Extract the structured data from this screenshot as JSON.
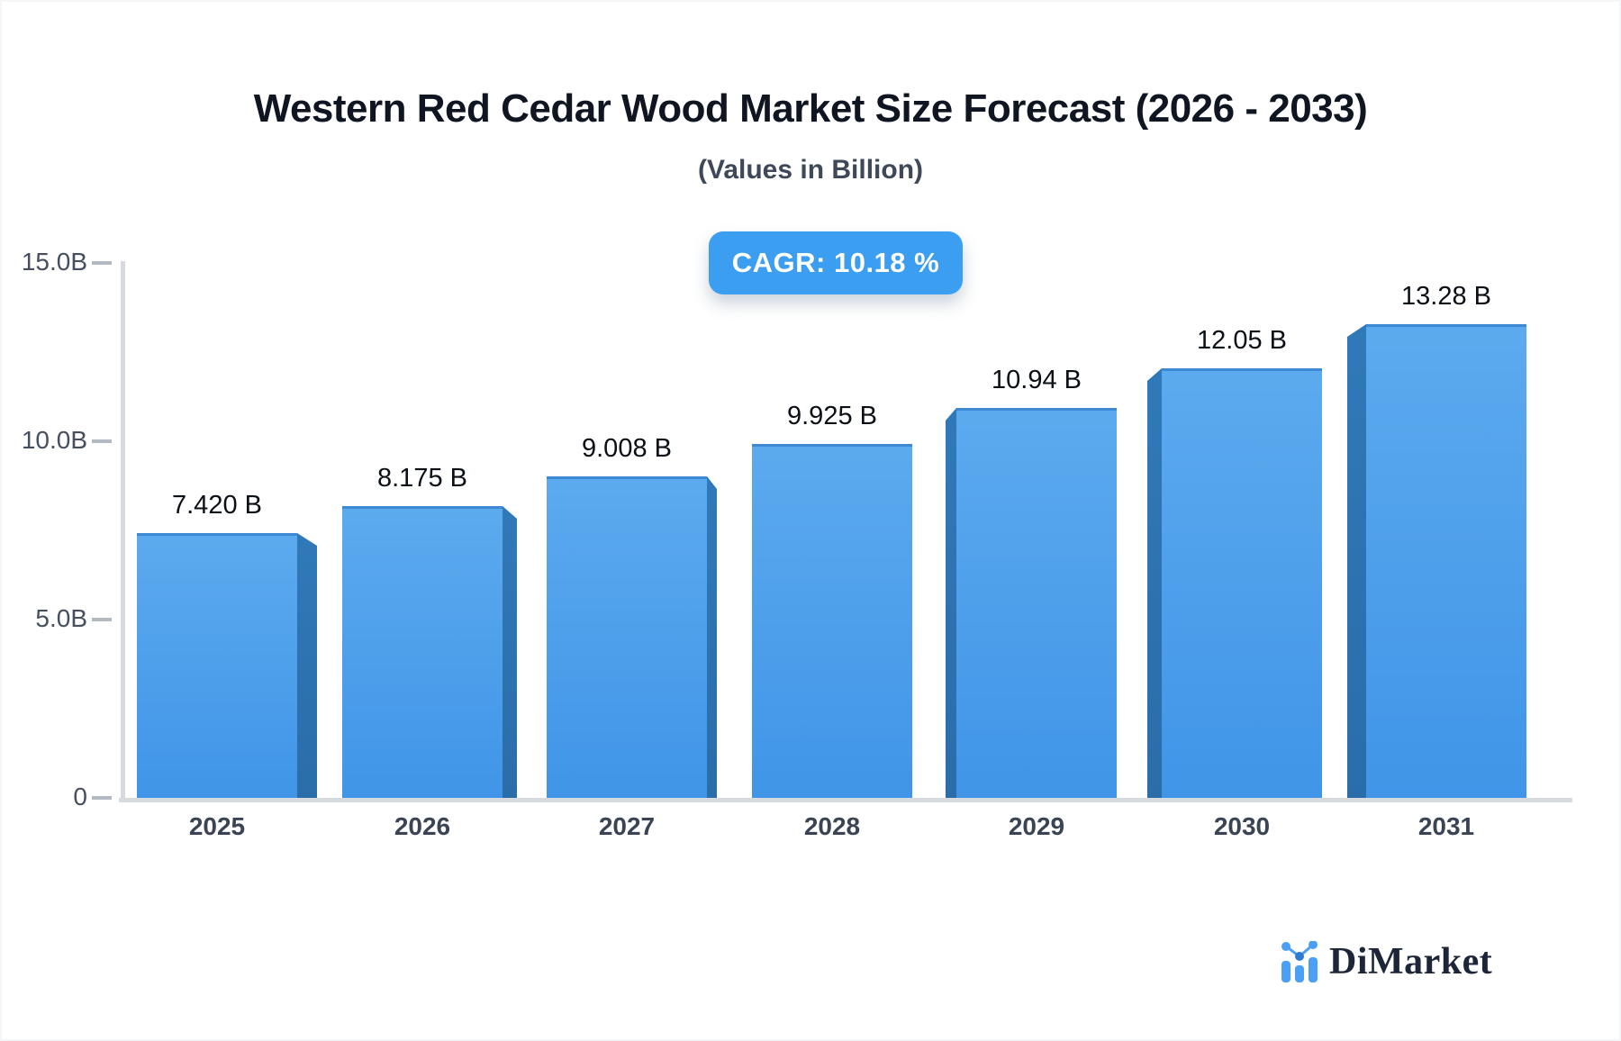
{
  "chart": {
    "title": "Western Red Cedar Wood Market Size Forecast (2026 - 2033)",
    "subtitle": "(Values in Billion)",
    "cagr_label": "CAGR: 10.18 %"
  },
  "brand": {
    "name": "DiMarket"
  },
  "colors": {
    "accent_blue": "#3c9ef1",
    "bar_face_top": "#5caaee",
    "bar_face_bottom": "#4095e8",
    "bar_side": "#2e75b5",
    "axis_line": "#d7dade",
    "axis_text": "#454f5f",
    "title_text": "#101522",
    "logo_navy": "#1d2639",
    "logo_blue": "#4aa0f4"
  },
  "chart_data": {
    "type": "bar",
    "title": "Western Red Cedar Wood Market Size Forecast (2026 - 2033)",
    "subtitle": "(Values in Billion)",
    "annotation": "CAGR: 10.18 %",
    "unit": "Billion",
    "categories": [
      "2025",
      "2026",
      "2027",
      "2028",
      "2029",
      "2030",
      "2031"
    ],
    "values": [
      7.42,
      8.175,
      9.008,
      9.925,
      10.94,
      12.05,
      13.28
    ],
    "value_labels": [
      "7.420 B",
      "8.175 B",
      "9.008 B",
      "9.925 B",
      "10.94 B",
      "12.05 B",
      "13.28 B"
    ],
    "ylim": [
      0,
      15
    ],
    "yticks": [
      0,
      5,
      10,
      15
    ],
    "ytick_labels": [
      "0",
      "5.0B",
      "10.0B",
      "15.0B"
    ],
    "grid": false,
    "legend": false,
    "bar_style": "3d-perspective-center-vanishing"
  }
}
